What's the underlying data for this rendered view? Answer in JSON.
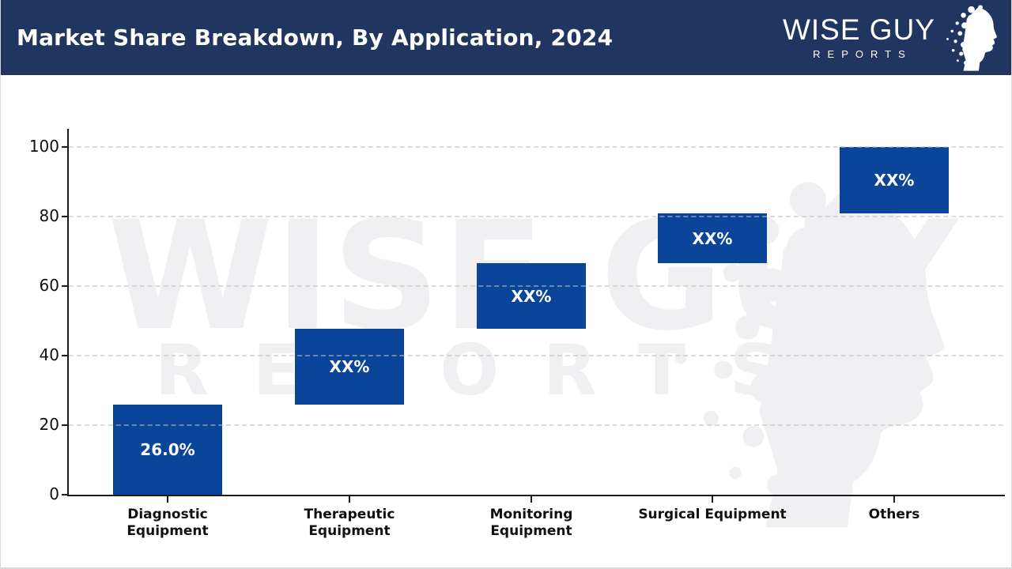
{
  "header": {
    "title": "Market Share Breakdown, By Application, 2024",
    "logo": {
      "line1": "WISE GUY",
      "line2": "REPORTS"
    }
  },
  "watermark": {
    "line1": "WISE GUY",
    "line2": "REPORTS"
  },
  "chart_data": {
    "type": "bar",
    "variant": "waterfall",
    "title": "Market Share Breakdown, By Application, 2024",
    "categories": [
      "Diagnostic\nEquipment",
      "Therapeutic\nEquipment",
      "Monitoring\nEquipment",
      "Surgical Equipment",
      "Others"
    ],
    "series": [
      {
        "category": "Diagnostic Equipment",
        "start": 0,
        "value": 26.0,
        "end": 26.0,
        "label": "26.0%"
      },
      {
        "category": "Therapeutic Equipment",
        "start": 26.0,
        "value": 21.7,
        "end": 47.7,
        "label": "XX%"
      },
      {
        "category": "Monitoring Equipment",
        "start": 47.7,
        "value": 18.8,
        "end": 66.5,
        "label": "XX%"
      },
      {
        "category": "Surgical Equipment",
        "start": 66.5,
        "value": 14.4,
        "end": 80.9,
        "label": "XX%"
      },
      {
        "category": "Others",
        "start": 80.9,
        "value": 19.1,
        "end": 100.0,
        "label": "XX%"
      }
    ],
    "xlabel": "",
    "ylabel": "",
    "yticks": [
      0,
      20,
      40,
      60,
      80,
      100
    ],
    "ylim": [
      0,
      105
    ],
    "grid": "horizontal dashed",
    "legend": "none",
    "bar_color": "#0a459a",
    "bar_label_color": "#ffffff",
    "header_bg": "#203560",
    "axis_color": "#1a1a1a"
  }
}
